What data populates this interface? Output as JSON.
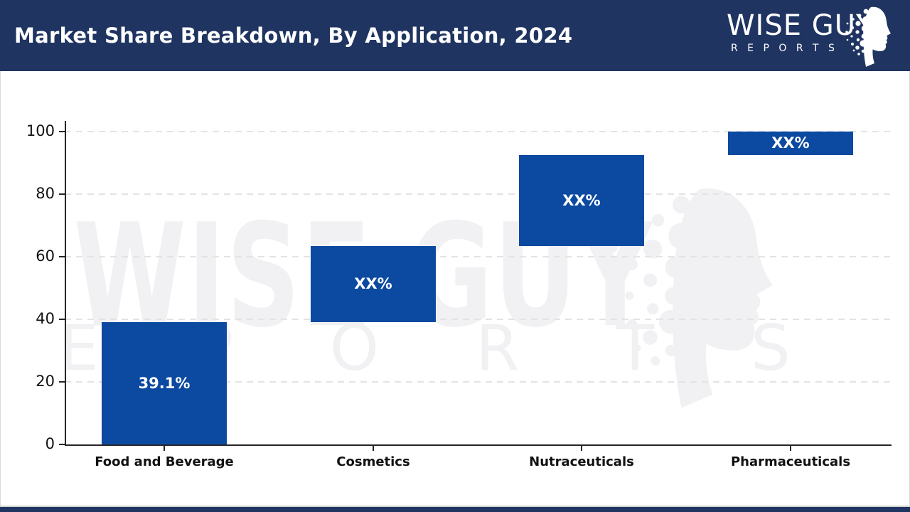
{
  "header": {
    "title": "Market Share Breakdown, By Application, 2024",
    "bg_color": "#1f3461",
    "logo": {
      "line1": "WISE GUY",
      "line2": "R E P O R T S"
    }
  },
  "watermark": {
    "line1": "WISE GUY",
    "line2": "R E P O R T S"
  },
  "chart_data": {
    "type": "bar",
    "subtype": "stacked-breakdown-waterfall",
    "title": "Market Share Breakdown, By Application, 2024",
    "xlabel": "",
    "ylabel": "",
    "ylim": [
      0,
      100
    ],
    "yticks": [
      "0",
      "20",
      "40",
      "60",
      "80",
      "100"
    ],
    "grid": "horizontal-dashed",
    "legend": "none",
    "bar_color": "#0c4aa1",
    "label_color": "#ffffff",
    "categories": [
      "Food and Beverage",
      "Cosmetics",
      "Nutraceuticals",
      "Pharmaceuticals"
    ],
    "segments": [
      {
        "category": "Food and Beverage",
        "start": 0,
        "end": 39.1,
        "value": 39.1,
        "label": "39.1%"
      },
      {
        "category": "Cosmetics",
        "start": 39.1,
        "end": 63.4,
        "value": 24.3,
        "label": "XX%"
      },
      {
        "category": "Nutraceuticals",
        "start": 63.4,
        "end": 92.5,
        "value": 29.1,
        "label": "XX%"
      },
      {
        "category": "Pharmaceuticals",
        "start": 92.5,
        "end": 100,
        "value": 7.5,
        "label": "XX%"
      }
    ]
  },
  "footer": {
    "bg_color": "#1f3461"
  }
}
